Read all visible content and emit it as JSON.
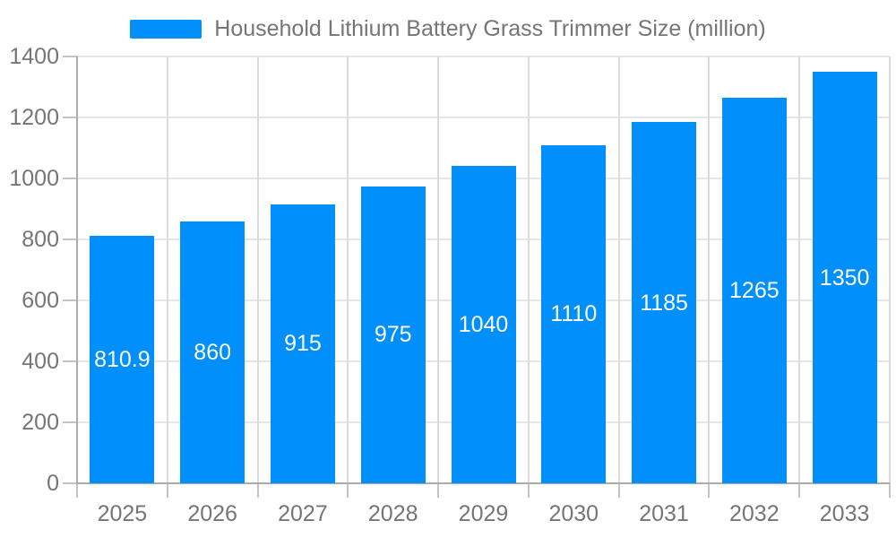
{
  "chart_data": {
    "type": "bar",
    "title": "Household Lithium Battery Grass Trimmer Size (million)",
    "series_name": "Household Lithium Battery Grass Trimmer Size (million)",
    "categories": [
      "2025",
      "2026",
      "2027",
      "2028",
      "2029",
      "2030",
      "2031",
      "2032",
      "2033"
    ],
    "values": [
      810.9,
      860,
      915,
      975,
      1040,
      1110,
      1185,
      1265,
      1350
    ],
    "xlabel": "",
    "ylabel": "",
    "ylim": [
      0,
      1400
    ],
    "yticks": [
      0,
      200,
      400,
      600,
      800,
      1000,
      1200,
      1400
    ],
    "grid": true,
    "legend_position": "top",
    "data_label_position": "inside-middle",
    "colors": {
      "bar": "#008FFB",
      "bar_label": "#FFFFFF",
      "axis_text": "#757575",
      "axis_line": "#ACACAC",
      "grid_h": "#E6E6E6",
      "grid_v": "#DCDCDC",
      "tick": "#C4C4C4",
      "background": "#FFFFFF"
    }
  }
}
